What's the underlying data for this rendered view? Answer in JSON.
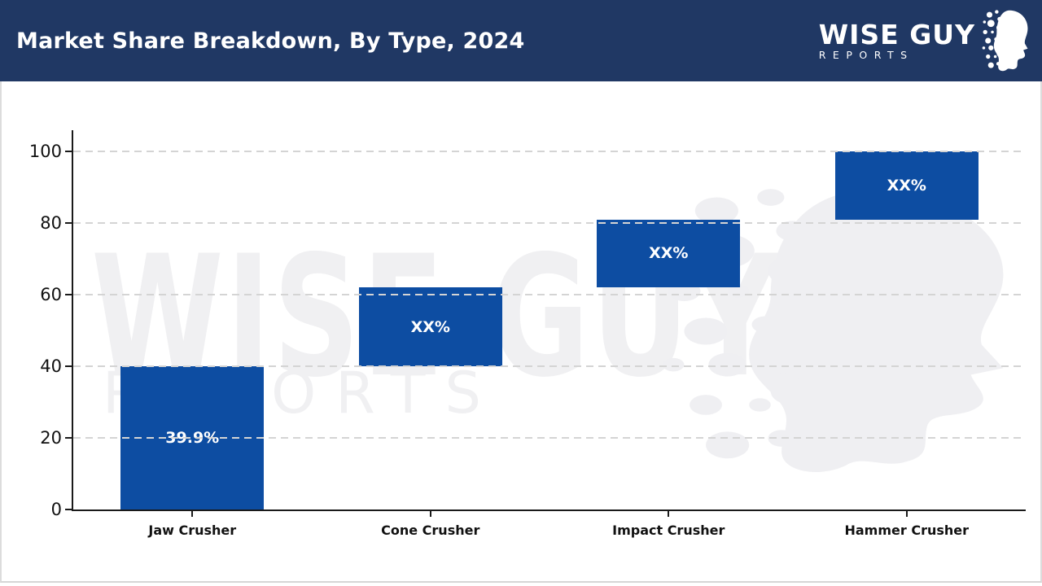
{
  "header": {
    "title": "Market Share Breakdown, By Type, 2024",
    "bg_color": "#203864",
    "logo": {
      "line1": "WISE GUY",
      "line2": "REPORTS",
      "face_icon": "dotted-face-profile"
    }
  },
  "watermark": {
    "line1": "WISE GUY",
    "line2": "REPORTS",
    "color": "#f0f0f2"
  },
  "chart_data": {
    "type": "bar",
    "subtype": "waterfall",
    "title": "Market Share Breakdown, By Type, 2024",
    "categories": [
      "Jaw Crusher",
      "Cone Crusher",
      "Impact Crusher",
      "Hammer Crusher"
    ],
    "series": [
      {
        "name": "Market Share (%)",
        "segments": [
          {
            "category": "Jaw Crusher",
            "start": 0,
            "end": 39.9,
            "label": "39.9%"
          },
          {
            "category": "Cone Crusher",
            "start": 40,
            "end": 62,
            "label": "XX%"
          },
          {
            "category": "Impact Crusher",
            "start": 62,
            "end": 81,
            "label": "XX%"
          },
          {
            "category": "Hammer Crusher",
            "start": 81,
            "end": 100,
            "label": "XX%"
          }
        ]
      }
    ],
    "yticks": [
      "0",
      "20",
      "40",
      "60",
      "80",
      "100"
    ],
    "ylim": [
      0,
      105
    ],
    "xlabel": "",
    "ylabel": "",
    "grid": "horizontal-dashed",
    "legend": "none",
    "bar_color": "#0d4da2",
    "bar_label_color": "#ffffff",
    "axis_color": "#1a1a1a",
    "grid_color": "#d4d4d4"
  }
}
